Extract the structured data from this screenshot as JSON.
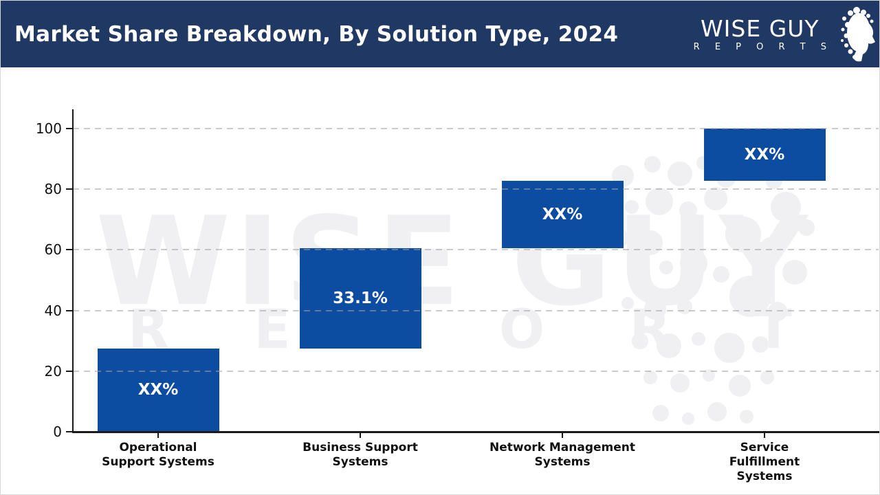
{
  "header": {
    "title": "Market Share Breakdown, By Solution Type, 2024",
    "logo": {
      "name": "WISE GUY",
      "subname": "R E P O R T S",
      "icon": "dotted-head-profile-icon"
    }
  },
  "watermark": {
    "big_text": "WISE GUY",
    "sub_text": "R E P O R T S"
  },
  "colors": {
    "header_bg": "#1f3864",
    "bar_blue": "#0c4da2",
    "axis": "#1a1a1a",
    "gridline": "#c9c9c9",
    "watermark": "#f0f0f2",
    "bar_label": "#ffffff",
    "text_dark": "#111111"
  },
  "chart_data": {
    "type": "bar",
    "subtype": "waterfall",
    "title": "Market Share Breakdown, By Solution Type, 2024",
    "categories": [
      "Operational Support Systems",
      "Business Support Systems",
      "Network Management Systems",
      "Service Fulfillment Systems"
    ],
    "category_label_lines": [
      [
        "Operational",
        "Support Systems"
      ],
      [
        "Business Support",
        "Systems"
      ],
      [
        "Network Management",
        "Systems"
      ],
      [
        "Service",
        "Fulfillment",
        "Systems"
      ]
    ],
    "segments": [
      {
        "category": "Operational Support Systems",
        "start": 0,
        "end": 27.5,
        "value": 27.5,
        "label": "XX%"
      },
      {
        "category": "Business Support Systems",
        "start": 27.5,
        "end": 60.6,
        "value": 33.1,
        "label": "33.1%"
      },
      {
        "category": "Network Management Systems",
        "start": 60.6,
        "end": 82.7,
        "value": 22.1,
        "label": "XX%"
      },
      {
        "category": "Service Fulfillment Systems",
        "start": 82.7,
        "end": 100,
        "value": 17.3,
        "label": "XX%"
      }
    ],
    "xlabel": "",
    "ylabel": "",
    "ylim": [
      0,
      100
    ],
    "yticks": [
      0,
      20,
      40,
      60,
      80,
      100
    ],
    "grid": "horizontal-dashed",
    "legend": "none",
    "bar_color": "#0c4da2"
  }
}
